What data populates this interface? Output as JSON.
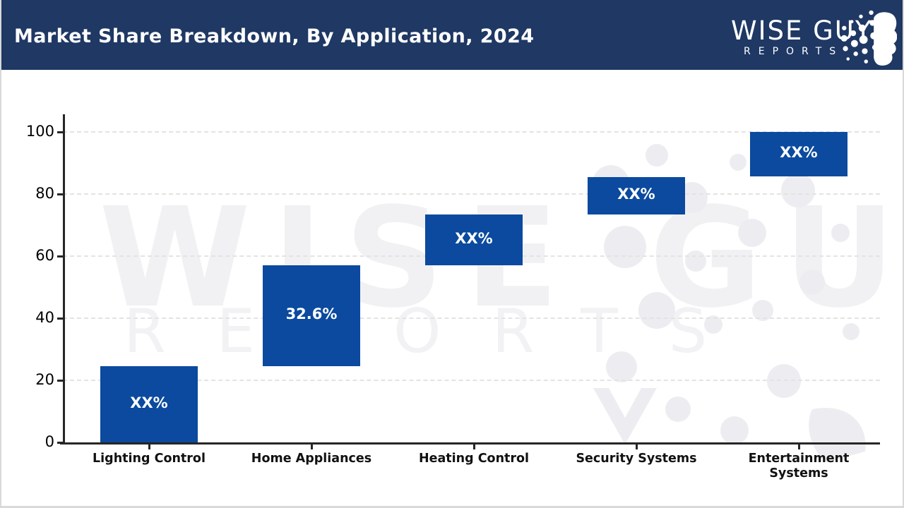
{
  "header": {
    "title": "Market Share Breakdown, By Application, 2024",
    "logo": {
      "wordmark": "WISE GUY",
      "subtext": "REPORTS"
    }
  },
  "watermark": {
    "wordmark": "WISE GUY",
    "subtext": "REPORTS"
  },
  "chart_data": {
    "type": "bar",
    "subtype": "waterfall",
    "title": "Market Share Breakdown, By Application, 2024",
    "categories": [
      "Lighting Control",
      "Home Appliances",
      "Heating Control",
      "Security Systems",
      "Entertainment Systems"
    ],
    "values": [
      24.5,
      32.6,
      16.3,
      12.0,
      14.3
    ],
    "segment_starts": [
      0,
      24.5,
      57.1,
      73.5,
      85.7
    ],
    "segment_ends": [
      24.5,
      57.1,
      73.4,
      85.5,
      100
    ],
    "bar_labels": [
      "XX%",
      "32.6%",
      "XX%",
      "XX%",
      "XX%"
    ],
    "yticks": [
      0,
      20,
      40,
      60,
      80,
      100
    ],
    "ylim": [
      0,
      100
    ],
    "xlabel": "",
    "ylabel": "",
    "legend": "none",
    "grid": "horizontal-dashed",
    "bar_color": "#0b4a9e",
    "bar_label_color": "#ffffff",
    "header_color": "#1f3864"
  }
}
